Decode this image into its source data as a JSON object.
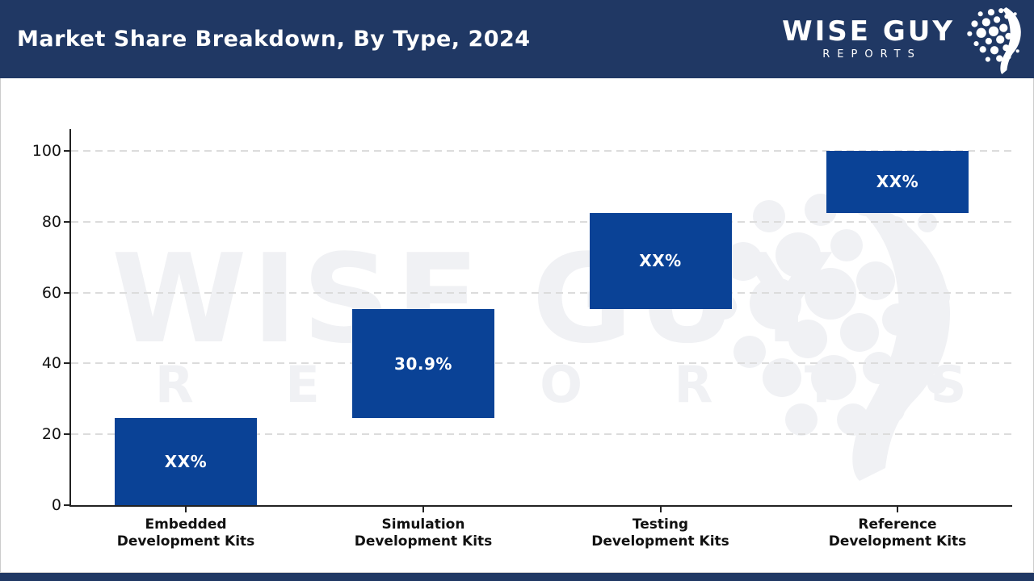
{
  "header": {
    "title": "Market Share Breakdown, By Type, 2024",
    "logo": {
      "line1": "WISE GUY",
      "line2": "REPORTS"
    }
  },
  "watermark": {
    "line1": "WISE GUY",
    "line2": "R E P O R T S"
  },
  "chart_data": {
    "type": "bar",
    "subtype": "waterfall",
    "title": "Market Share Breakdown, By Type, 2024",
    "categories": [
      [
        "Embedded",
        "Development Kits"
      ],
      [
        "Simulation",
        "Development Kits"
      ],
      [
        "Testing",
        "Development Kits"
      ],
      [
        "Reference",
        "Development Kits"
      ]
    ],
    "segments": [
      {
        "start": 0,
        "end": 24.5,
        "value_label": "XX%"
      },
      {
        "start": 24.5,
        "end": 55.4,
        "value_label": "30.9%"
      },
      {
        "start": 55.4,
        "end": 82.5,
        "value_label": "XX%"
      },
      {
        "start": 82.5,
        "end": 100,
        "value_label": "XX%"
      }
    ],
    "y_ticks": [
      0,
      20,
      40,
      60,
      80,
      100
    ],
    "ylim": [
      0,
      100
    ],
    "xlabel": "",
    "ylabel": "",
    "grid": "horizontal-dashed",
    "legend": "none",
    "bar_color": "#0a4296",
    "bar_label_color": "#ffffff"
  },
  "colors": {
    "header_bg": "#203864",
    "footer_bg": "#203864",
    "bar": "#0a4296",
    "axis": "#222222",
    "grid": "#dcdcdc",
    "watermark": "#f0f1f4",
    "card_border": "#cccccc"
  }
}
